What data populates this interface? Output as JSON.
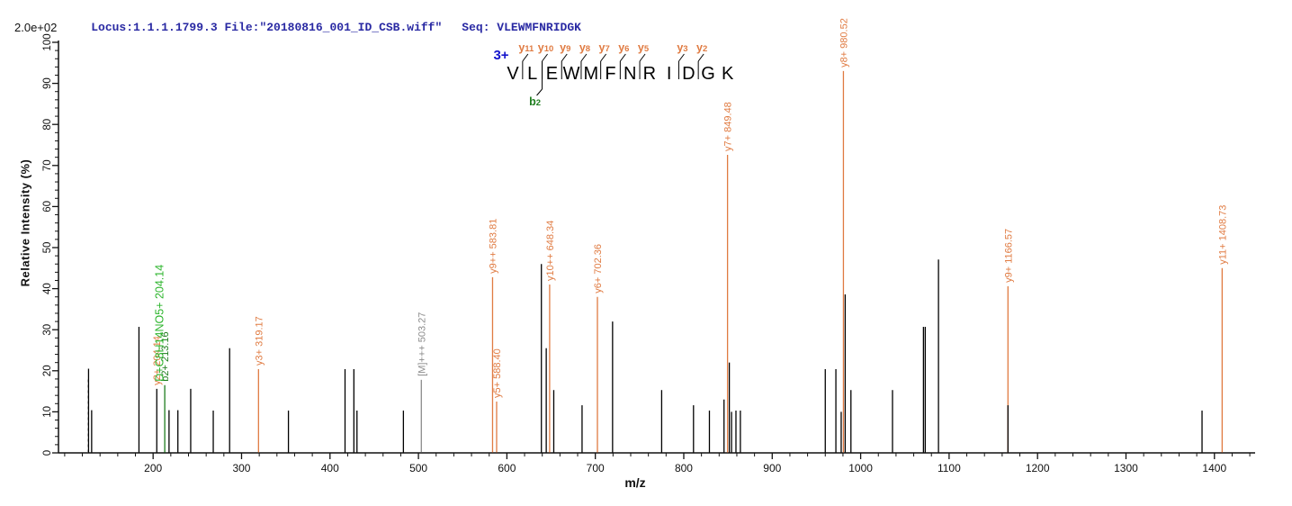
{
  "header": {
    "locus_file": "Locus:1.1.1.1799.3 File:\"20180816_001_ID_CSB.wiff\"",
    "seq": "Seq: VLEWMFNRIDGK"
  },
  "colors": {
    "header_blue": "#2929a3",
    "charge_blue": "#1414cc",
    "annotation_orange": "#e07b42",
    "bright_green": "#2db52d",
    "dark_green": "#1e7d1e",
    "gray": "#8c8c8c",
    "dashed_gray": "#aaaaaa",
    "peak_black": "#000000",
    "axis_black": "#111111"
  },
  "chart_data": {
    "type": "bar",
    "subtype": "peptide-fragmentation-ms2-spectrum",
    "title": "",
    "xlabel": "m/z",
    "ylabel": "Relative Intensity (%)",
    "scale_note": "2.0e+02",
    "xlim": [
      93,
      1446
    ],
    "ylim": [
      0,
      100
    ],
    "x_major_ticks": [
      200,
      300,
      400,
      500,
      600,
      700,
      800,
      900,
      1000,
      1100,
      1200,
      1300,
      1400
    ],
    "x_minor_start": 100,
    "x_minor_end": 1440,
    "x_minor_step": 20,
    "y_major_step": 10,
    "y_minor_step": 2,
    "grid": false,
    "precursor_charge_label": "3+",
    "peptide": {
      "residues": [
        "V",
        "L",
        "E",
        "W",
        "M",
        "F",
        "N",
        "R",
        "I",
        "D",
        "G",
        "K"
      ],
      "y_ion_cuts": [
        {
          "label_main": "y",
          "label_sub": "11",
          "after_residue_index": 0
        },
        {
          "label_main": "y",
          "label_sub": "10",
          "after_residue_index": 1
        },
        {
          "label_main": "y",
          "label_sub": "9",
          "after_residue_index": 2
        },
        {
          "label_main": "y",
          "label_sub": "8",
          "after_residue_index": 3
        },
        {
          "label_main": "y",
          "label_sub": "7",
          "after_residue_index": 4
        },
        {
          "label_main": "y",
          "label_sub": "6",
          "after_residue_index": 5
        },
        {
          "label_main": "y",
          "label_sub": "5",
          "after_residue_index": 6
        },
        {
          "label_main": "y",
          "label_sub": "3",
          "after_residue_index": 8
        },
        {
          "label_main": "y",
          "label_sub": "2",
          "after_residue_index": 9
        }
      ],
      "b_ion_cuts": [
        {
          "label_main": "b",
          "label_sub": "2",
          "after_residue_index": 1
        }
      ]
    },
    "peaks": [
      {
        "mz": 126.5,
        "intensity": 18.0,
        "color": "dashed_gray",
        "dashed": true
      },
      {
        "mz": 127.0,
        "intensity": 20.5,
        "color": "black"
      },
      {
        "mz": 130.5,
        "intensity": 10.4,
        "color": "black"
      },
      {
        "mz": 184.0,
        "intensity": 30.7,
        "color": "black"
      },
      {
        "mz": 204.14,
        "intensity": 15.6,
        "color": "black",
        "label": "y2+ 204.14",
        "label_color": "orange"
      },
      {
        "mz": 213.16,
        "intensity": 16.5,
        "color": "dark_green",
        "label": "b2+ 213.16",
        "label_color": "dark_green"
      },
      {
        "mz": 218.0,
        "intensity": 10.4,
        "color": "black"
      },
      {
        "mz": 228.0,
        "intensity": 10.4,
        "color": "black"
      },
      {
        "mz": 242.5,
        "intensity": 15.6,
        "color": "black"
      },
      {
        "mz": 268.0,
        "intensity": 10.3,
        "color": "black"
      },
      {
        "mz": 286.5,
        "intensity": 25.5,
        "color": "black"
      },
      {
        "mz": 319.17,
        "intensity": 20.4,
        "color": "orange",
        "label": "y3+ 319.17",
        "label_color": "orange"
      },
      {
        "mz": 353.0,
        "intensity": 10.3,
        "color": "black"
      },
      {
        "mz": 417.0,
        "intensity": 20.4,
        "color": "black"
      },
      {
        "mz": 427.0,
        "intensity": 20.4,
        "color": "black"
      },
      {
        "mz": 430.5,
        "intensity": 10.3,
        "color": "black"
      },
      {
        "mz": 483.0,
        "intensity": 10.3,
        "color": "black"
      },
      {
        "mz": 503.27,
        "intensity": 17.8,
        "color": "gray",
        "label": "[M]+++ 503.27",
        "label_color": "gray"
      },
      {
        "mz": 583.81,
        "intensity": 42.8,
        "color": "orange",
        "label": "y9++ 583.81",
        "label_color": "orange"
      },
      {
        "mz": 588.4,
        "intensity": 12.5,
        "color": "orange",
        "label": "y5+ 588.40",
        "label_color": "orange"
      },
      {
        "mz": 639.0,
        "intensity": 46.0,
        "color": "black"
      },
      {
        "mz": 644.5,
        "intensity": 25.5,
        "color": "black"
      },
      {
        "mz": 648.34,
        "intensity": 41.0,
        "color": "orange",
        "label": "y10++ 648.34",
        "label_color": "orange"
      },
      {
        "mz": 653.0,
        "intensity": 15.3,
        "color": "black"
      },
      {
        "mz": 685.0,
        "intensity": 11.6,
        "color": "black"
      },
      {
        "mz": 702.36,
        "intensity": 38.0,
        "color": "orange",
        "label": "y6+ 702.36",
        "label_color": "orange"
      },
      {
        "mz": 719.5,
        "intensity": 32.0,
        "color": "black"
      },
      {
        "mz": 775.0,
        "intensity": 15.3,
        "color": "black"
      },
      {
        "mz": 811.0,
        "intensity": 11.6,
        "color": "black"
      },
      {
        "mz": 829.0,
        "intensity": 10.3,
        "color": "black"
      },
      {
        "mz": 845.5,
        "intensity": 13.0,
        "color": "black"
      },
      {
        "mz": 849.48,
        "intensity": 72.6,
        "color": "orange",
        "label": "y7+ 849.48",
        "label_color": "orange"
      },
      {
        "mz": 851.5,
        "intensity": 22.0,
        "color": "black"
      },
      {
        "mz": 854.0,
        "intensity": 10.0,
        "color": "black"
      },
      {
        "mz": 859.0,
        "intensity": 10.3,
        "color": "black"
      },
      {
        "mz": 864.0,
        "intensity": 10.3,
        "color": "black"
      },
      {
        "mz": 960.0,
        "intensity": 20.4,
        "color": "black"
      },
      {
        "mz": 972.0,
        "intensity": 20.4,
        "color": "black"
      },
      {
        "mz": 978.0,
        "intensity": 10.0,
        "color": "black"
      },
      {
        "mz": 980.52,
        "intensity": 93.0,
        "color": "orange",
        "label": "y8+ 980.52",
        "label_color": "orange"
      },
      {
        "mz": 982.5,
        "intensity": 38.6,
        "color": "black"
      },
      {
        "mz": 989.0,
        "intensity": 15.3,
        "color": "black"
      },
      {
        "mz": 1036.0,
        "intensity": 15.3,
        "color": "black"
      },
      {
        "mz": 1071.0,
        "intensity": 30.7,
        "color": "black"
      },
      {
        "mz": 1073.0,
        "intensity": 30.7,
        "color": "black"
      },
      {
        "mz": 1088.0,
        "intensity": 47.1,
        "color": "black"
      },
      {
        "mz": 1166.57,
        "intensity": 40.6,
        "color": "orange",
        "label": "y9+ 1166.57",
        "label_color": "orange"
      },
      {
        "mz": 1166.57,
        "intensity": 11.6,
        "color": "black"
      },
      {
        "mz": 1386.0,
        "intensity": 10.3,
        "color": "black"
      },
      {
        "mz": 1408.73,
        "intensity": 45.0,
        "color": "orange",
        "label": "y11+ 1408.73",
        "label_color": "orange"
      }
    ],
    "extra_labels": [
      {
        "text": "D+C8H14NO5+ 204.14",
        "mz": 207.5,
        "bottom_intensity": 16.5,
        "color": "bright_green",
        "font_size": 12.5
      }
    ]
  }
}
